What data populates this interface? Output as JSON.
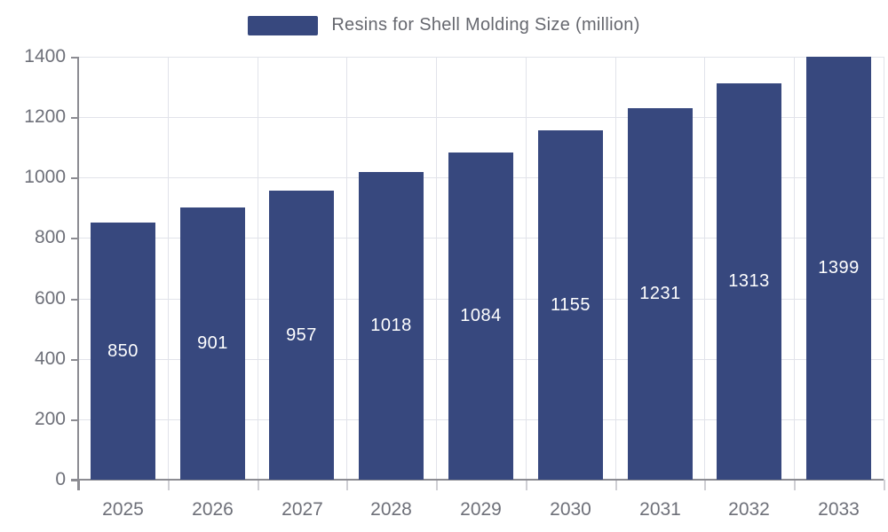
{
  "chart_data": {
    "type": "bar",
    "title": "Resins for Shell Molding Size (million)",
    "legend_label": "Resins for Shell Molding Size (million)",
    "categories": [
      "2025",
      "2026",
      "2027",
      "2028",
      "2029",
      "2030",
      "2031",
      "2032",
      "2033"
    ],
    "values": [
      850,
      901,
      957,
      1018,
      1084,
      1155,
      1231,
      1313,
      1399
    ],
    "yticks": [
      0,
      200,
      400,
      600,
      800,
      1000,
      1200,
      1400
    ],
    "ylim": [
      0,
      1400
    ],
    "grid": true,
    "legend_position": "top-center",
    "value_label_position": "inside-center",
    "colors": {
      "bar": "#37487E",
      "value_label": "#FFFFFF",
      "axis_text": "#6E7079",
      "legend_text": "#66686F",
      "grid_line": "#E1E3EA",
      "axis_line": "#8C8C92",
      "tick": "#CFCFD4",
      "background": "#FFFFFF"
    }
  }
}
